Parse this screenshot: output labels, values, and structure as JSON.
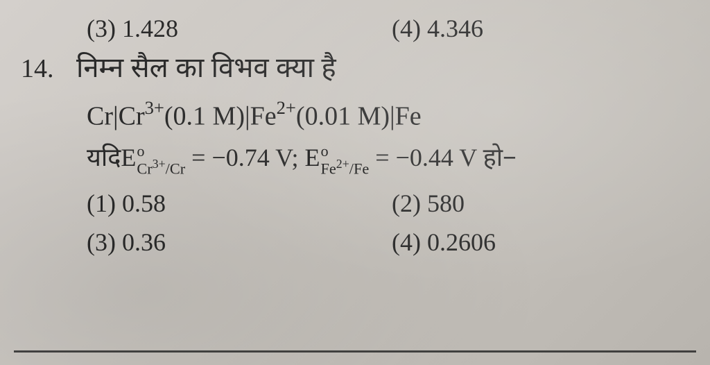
{
  "prev_options": {
    "opt3": {
      "num": "(3)",
      "val": "1.428"
    },
    "opt4": {
      "num": "(4)",
      "val": "4.346"
    }
  },
  "q14": {
    "number": "14.",
    "text_hindi": "निम्न सैल का विभव क्या है",
    "cell": {
      "cr": "Cr",
      "bar1": "|",
      "cr3": "Cr",
      "cr3_sup": "3+",
      "conc1": "(0.1 M)",
      "bar2": "|",
      "fe2": "Fe",
      "fe2_sup": "2+",
      "conc2": "(0.01 M)",
      "bar3": "|",
      "fe": "Fe"
    },
    "cond": {
      "yadi": "यदि ",
      "E1": "E",
      "deg": "o",
      "sub1a": "Cr",
      "sub1a_sup": "3+",
      "sub1b": "/Cr",
      "eq1": " = −0.74 V; ",
      "E2": "E",
      "sub2a": "Fe",
      "sub2a_sup": "2+",
      "sub2b": "/Fe",
      "eq2": " = −0.44 V ",
      "ho": "हो−"
    },
    "options": {
      "opt1": {
        "num": "(1)",
        "val": "0.58"
      },
      "opt2": {
        "num": "(2)",
        "val": "580"
      },
      "opt3": {
        "num": "(3)",
        "val": "0.36"
      },
      "opt4": {
        "num": "(4)",
        "val": "0.2606"
      }
    }
  },
  "style": {
    "text_color": "#2a2a2a",
    "bg_start": "#d4d0cc",
    "bg_end": "#b8b4ae",
    "opt_fontsize": 36,
    "q_fontsize": 40,
    "cell_fontsize": 38
  }
}
